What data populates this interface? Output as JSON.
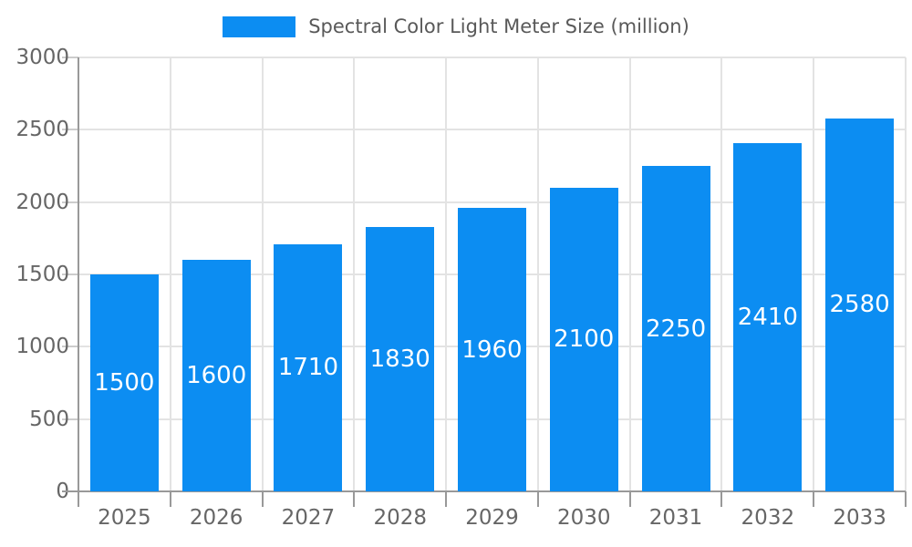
{
  "legend": {
    "label": "Spectral Color Light Meter Size (million)"
  },
  "chart_data": {
    "type": "bar",
    "title": "Spectral Color Light Meter Size (million)",
    "categories": [
      "2025",
      "2026",
      "2027",
      "2028",
      "2029",
      "2030",
      "2031",
      "2032",
      "2033"
    ],
    "series": [
      {
        "name": "Spectral Color Light Meter Size (million)",
        "values": [
          1500,
          1600,
          1710,
          1830,
          1960,
          2100,
          2250,
          2410,
          2580
        ],
        "color": "#0c8df2"
      }
    ],
    "xlabel": "",
    "ylabel": "",
    "ylim": [
      0,
      3000
    ],
    "yticks": [
      0,
      500,
      1000,
      1500,
      2000,
      2500,
      3000
    ],
    "grid": true,
    "legend_position": "top",
    "bar_label_color": "#ffffff",
    "bar_labels_inside": true
  },
  "colors": {
    "bar": "#0c8df2",
    "grid_line": "#e3e3e3",
    "axis_line": "#999999",
    "y_tick": "#cccccc",
    "tick_label": "#666666",
    "legend_text": "#595959",
    "background": "#ffffff"
  }
}
